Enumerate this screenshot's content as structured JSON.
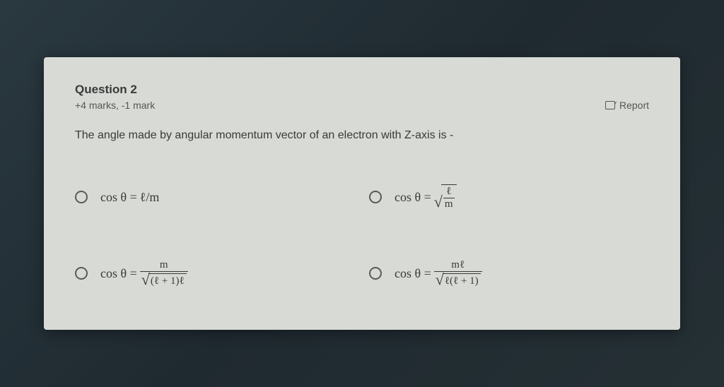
{
  "header": {
    "title": "Question 2",
    "marks": "+4 marks, -1 mark",
    "report_label": "Report"
  },
  "prompt": "The angle made by angular momentum vector of an electron with Z-axis is -",
  "options": {
    "a": {
      "lhs": "cos θ =",
      "rhs": "ℓ/m"
    },
    "b": {
      "lhs": "cos θ =",
      "sqrt_num": "ℓ",
      "sqrt_den": "m"
    },
    "c": {
      "lhs": "cos θ =",
      "num": "m",
      "den_under_sqrt": "(ℓ + 1)ℓ"
    },
    "d": {
      "lhs": "cos θ =",
      "num": "mℓ",
      "den_under_sqrt": "ℓ(ℓ + 1)"
    }
  },
  "style": {
    "card_bg": "#d8dad5",
    "text_color": "#3a3a3a",
    "muted_color": "#555555",
    "radio_border": "#5a5a5a",
    "page_bg": "#253035",
    "title_fontsize": 17,
    "prompt_fontsize": 16,
    "formula_fontsize": 18
  }
}
